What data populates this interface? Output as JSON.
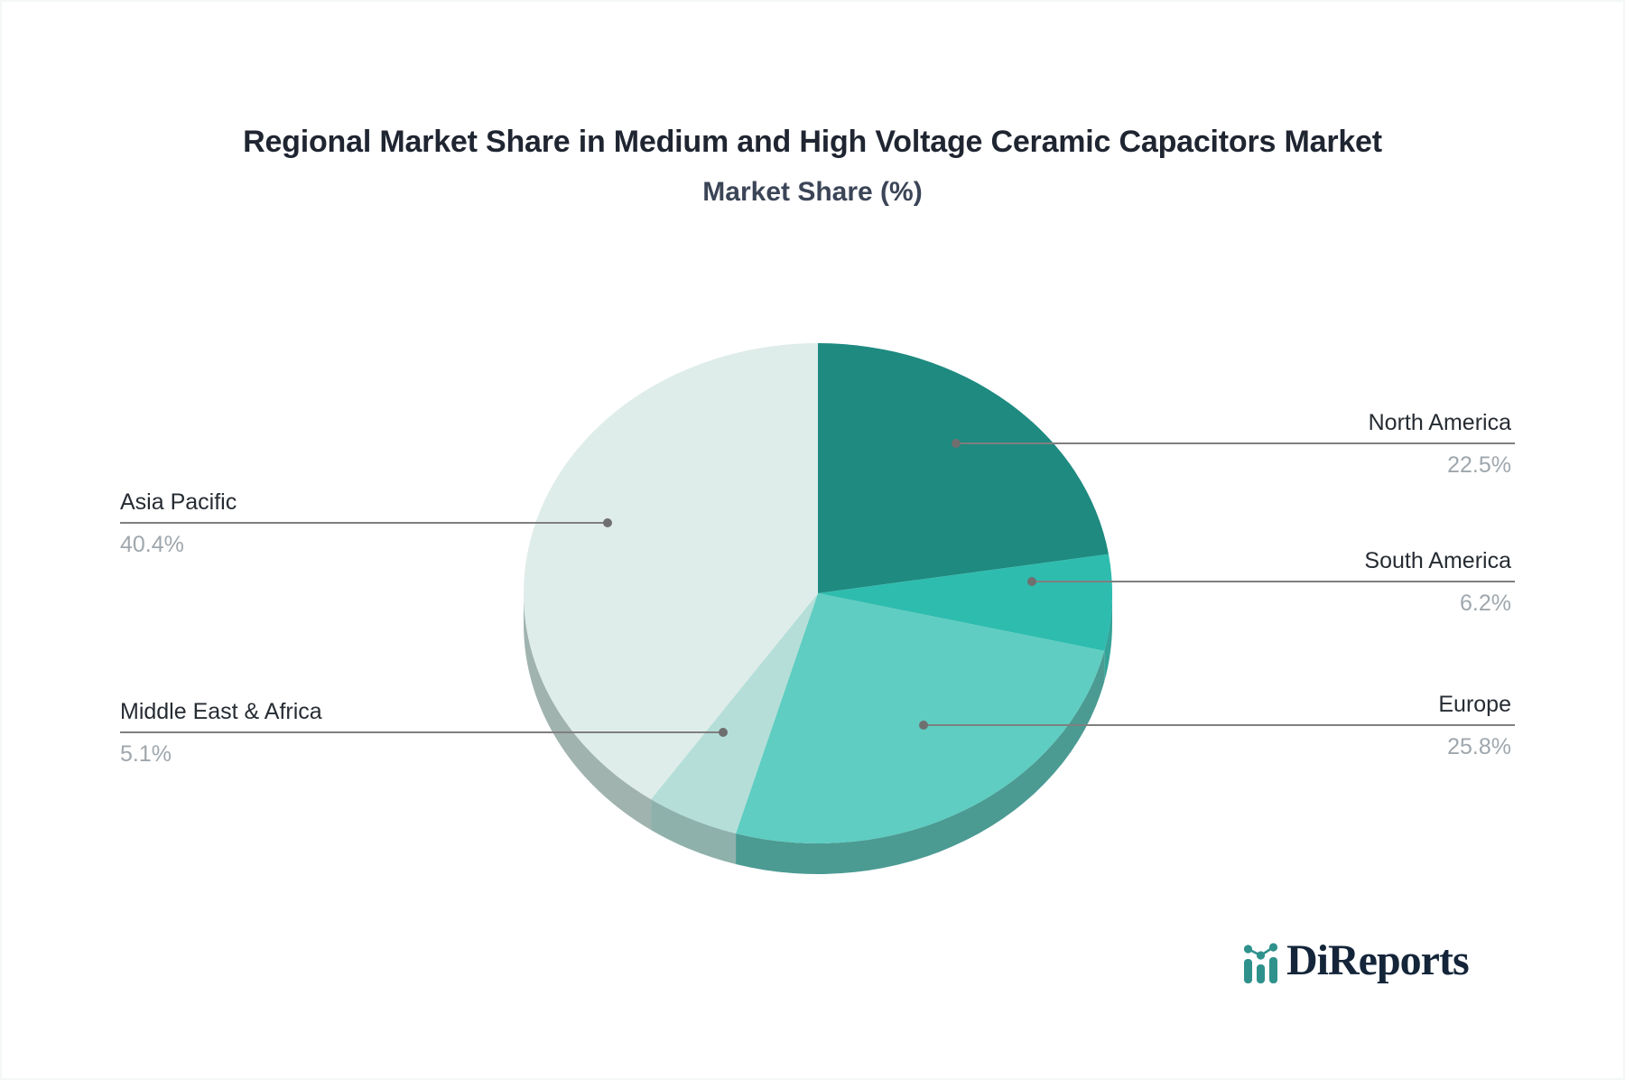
{
  "page": {
    "background": "#ffffff",
    "border_color": "#f4f7f7"
  },
  "header": {
    "title": "Regional Market Share in Medium and High Voltage Ceramic Capacitors Market",
    "title_color": "#1f2531",
    "subtitle": "Market Share (%)",
    "subtitle_color": "#3b4557"
  },
  "chart_data": {
    "type": "pie",
    "style": "3d",
    "title": "Regional Market Share in Medium and High Voltage Ceramic Capacitors Market",
    "subtitle": "Market Share (%)",
    "unit": "%",
    "direction": "clockwise",
    "start_angle": "12-oclock",
    "legend_position": "leader-line-labels",
    "labels": [
      "North America",
      "South America",
      "Europe",
      "Middle East & Africa",
      "Asia Pacific"
    ],
    "values": [
      22.5,
      6.2,
      25.8,
      5.1,
      40.4
    ],
    "slices": [
      {
        "label": "North America",
        "value": 22.5,
        "display_value": "22.5%",
        "color": "#1e8a80",
        "side_color": "#16706a"
      },
      {
        "label": "South America",
        "value": 6.2,
        "display_value": "6.2%",
        "color": "#2ebcae",
        "side_color": "#35a398"
      },
      {
        "label": "Europe",
        "value": 25.8,
        "display_value": "25.8%",
        "color": "#5fcdc1",
        "side_color": "#4b9b93"
      },
      {
        "label": "Middle East & Africa",
        "value": 5.1,
        "display_value": "5.1%",
        "color": "#b5ded8",
        "side_color": "#8fb1ab"
      },
      {
        "label": "Asia Pacific",
        "value": 40.4,
        "display_value": "40.4%",
        "color": "#dfedea",
        "side_color": "#a0b3af"
      }
    ]
  },
  "labels_style": {
    "name_color": "#262c33",
    "value_color": "#9fa7ad",
    "line_color": "#7f7f7f",
    "dot_color": "#6f6f6f"
  },
  "logo": {
    "text": "DiReports",
    "icon": "mini-chart-logo-icon",
    "icon_color": "#2f918c",
    "text_color": "#142539"
  }
}
